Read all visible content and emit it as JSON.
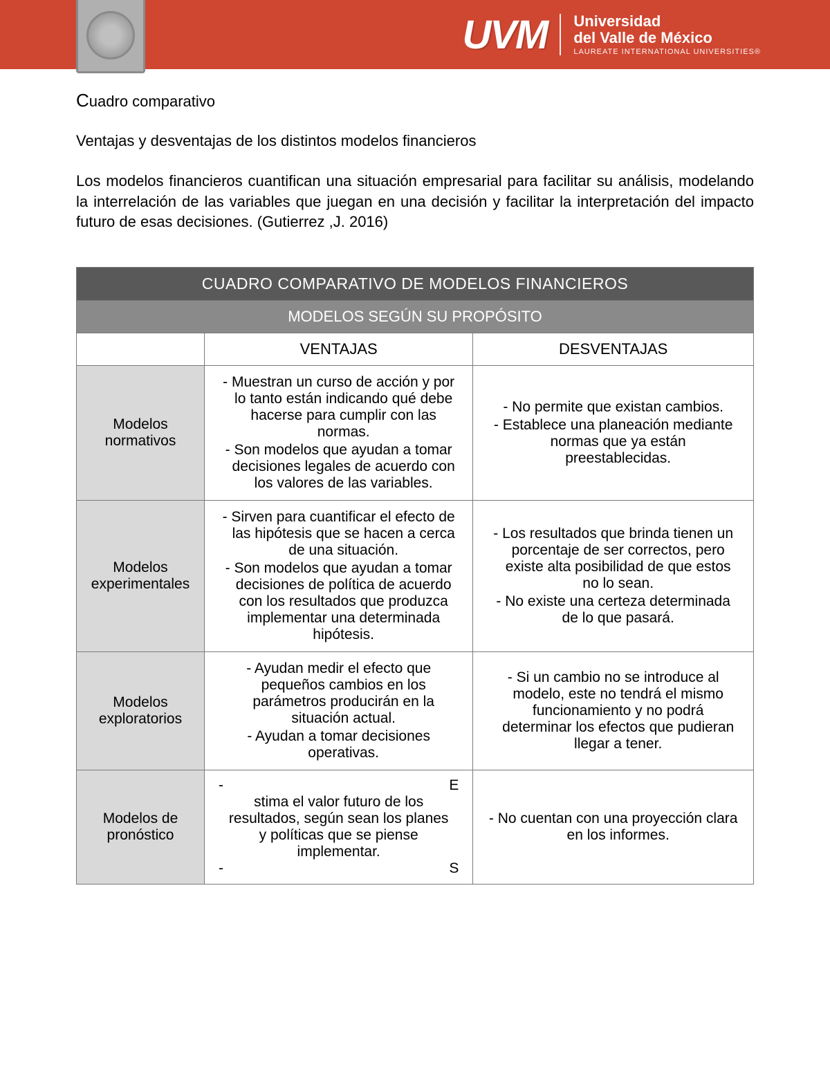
{
  "colors": {
    "header_bg": "#cf4631",
    "table_header_main": "#595959",
    "table_header_sub": "#8a8a8a",
    "row_label_bg": "#d9d9d9",
    "border": "#7a7a7a",
    "white": "#ffffff",
    "text": "#000000"
  },
  "typography": {
    "body_font": "Arial",
    "body_size_pt": 16,
    "title_size_pt": 17,
    "table_size_pt": 16
  },
  "header": {
    "logo_text": "UVM",
    "brand_line1": "Universidad",
    "brand_line2": "del Valle de México",
    "brand_line3": "LAUREATE INTERNATIONAL UNIVERSITIES®"
  },
  "document": {
    "title_prefix": "C",
    "title_rest": "uadro comparativo",
    "subtitle": "Ventajas y desventajas de los distintos modelos financieros",
    "intro": "Los modelos financieros cuantifican una situación empresarial para facilitar su análisis, modelando la interrelación de las variables que juegan en una decisión y facilitar la interpretación del impacto futuro de esas decisiones. (Gutierrez ,J. 2016)"
  },
  "table": {
    "main_header": "CUADRO COMPARATIVO DE MODELOS FINANCIEROS",
    "sub_header": "MODELOS SEGÚN SU PROPÓSITO",
    "col_ventajas": "VENTAJAS",
    "col_desventajas": "DESVENTAJAS",
    "rows": [
      {
        "label": "Modelos normativos",
        "ventajas": [
          "Muestran un curso de acción y por lo tanto están indicando qué debe hacerse para cumplir con las normas.",
          "Son modelos que ayudan a tomar decisiones legales de acuerdo con los valores de las variables."
        ],
        "desventajas": [
          "No permite que existan cambios.",
          "Establece una planeación mediante normas que ya están preestablecidas."
        ]
      },
      {
        "label": "Modelos experimentales",
        "ventajas": [
          "Sirven para cuantificar el efecto de las hipótesis que se hacen a cerca de una situación.",
          "Son modelos que ayudan a tomar decisiones de política de acuerdo con los resultados que produzca implementar una determinada hipótesis."
        ],
        "desventajas": [
          "Los resultados que brinda tienen un porcentaje de ser correctos, pero existe alta posibilidad de que estos no lo sean.",
          "No existe una certeza determinada de lo que pasará."
        ]
      },
      {
        "label": "Modelos exploratorios",
        "ventajas": [
          "Ayudan medir el efecto que pequeños cambios en los parámetros producirán en la situación actual.",
          "Ayudan a tomar decisiones operativas."
        ],
        "desventajas": [
          "Si un cambio no se introduce al modelo, este no tendrá el mismo funcionamiento y no podrá determinar los efectos que pudieran llegar a tener."
        ]
      },
      {
        "label": "Modelos de pronóstico",
        "ventajas_fragment": {
          "top_dash": "-",
          "top_letter": "E",
          "body": "stima el valor futuro de los resultados, según sean los planes y políticas que se piense implementar.",
          "bot_dash": "-",
          "bot_letter": "S"
        },
        "desventajas": [
          "No cuentan con una proyección clara en los informes."
        ]
      }
    ]
  }
}
